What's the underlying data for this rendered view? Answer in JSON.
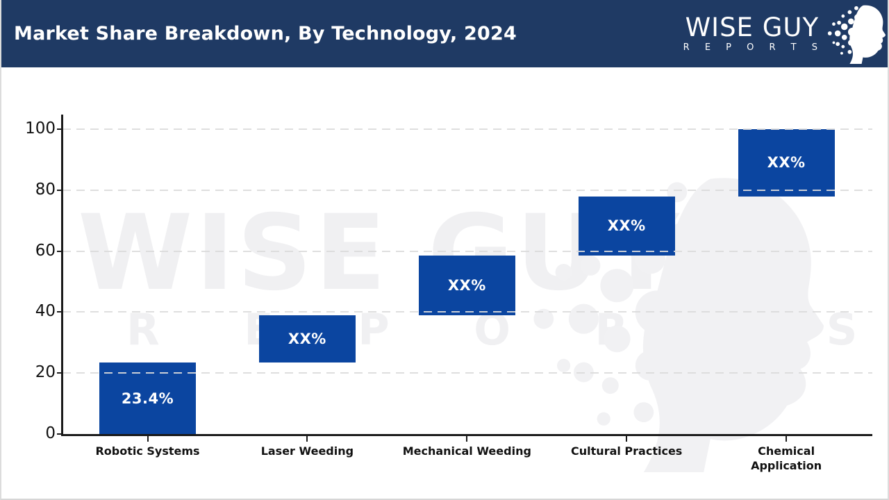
{
  "header": {
    "title": "Market Share Breakdown, By Technology, 2024",
    "logo": {
      "wordmark": "WISE GUY",
      "subtitle": "R E P O R T S"
    }
  },
  "watermark": {
    "wordmark": "WISE GUY",
    "subtitle": "R E P O R T S"
  },
  "colors": {
    "header_bg": "#1f3a64",
    "bar": "#0b45a0",
    "gridline": "#dcdcdc",
    "axis": "#1a1a1a",
    "value_label": "#ffffff",
    "watermark": "#f0f0f2"
  },
  "chart_data": {
    "type": "bar",
    "subtype": "waterfall",
    "title": "Market Share Breakdown, By Technology, 2024",
    "categories": [
      "Robotic Systems",
      "Laser Weeding",
      "Mechanical Weeding",
      "Cultural Practices",
      "Chemical Application"
    ],
    "segments": [
      {
        "category": "Robotic Systems",
        "tick_label": "Robotic Systems",
        "start": 0,
        "end": 23.4,
        "label": "23.4%"
      },
      {
        "category": "Laser Weeding",
        "tick_label": "Laser Weeding",
        "start": 23.4,
        "end": 39,
        "label": "XX%"
      },
      {
        "category": "Mechanical Weeding",
        "tick_label": "Mechanical Weeding",
        "start": 39,
        "end": 58.5,
        "label": "XX%"
      },
      {
        "category": "Cultural Practices",
        "tick_label": "Cultural Practices",
        "start": 58.5,
        "end": 78,
        "label": "XX%"
      },
      {
        "category": "Chemical Application",
        "tick_label": "Chemical\nApplication",
        "start": 78,
        "end": 100,
        "label": "XX%"
      }
    ],
    "ylim": [
      0,
      100
    ],
    "yticks": [
      0,
      20,
      40,
      60,
      80,
      100
    ],
    "xlabel": "",
    "ylabel": "",
    "grid": "horizontal-dashed",
    "legend": "none"
  }
}
